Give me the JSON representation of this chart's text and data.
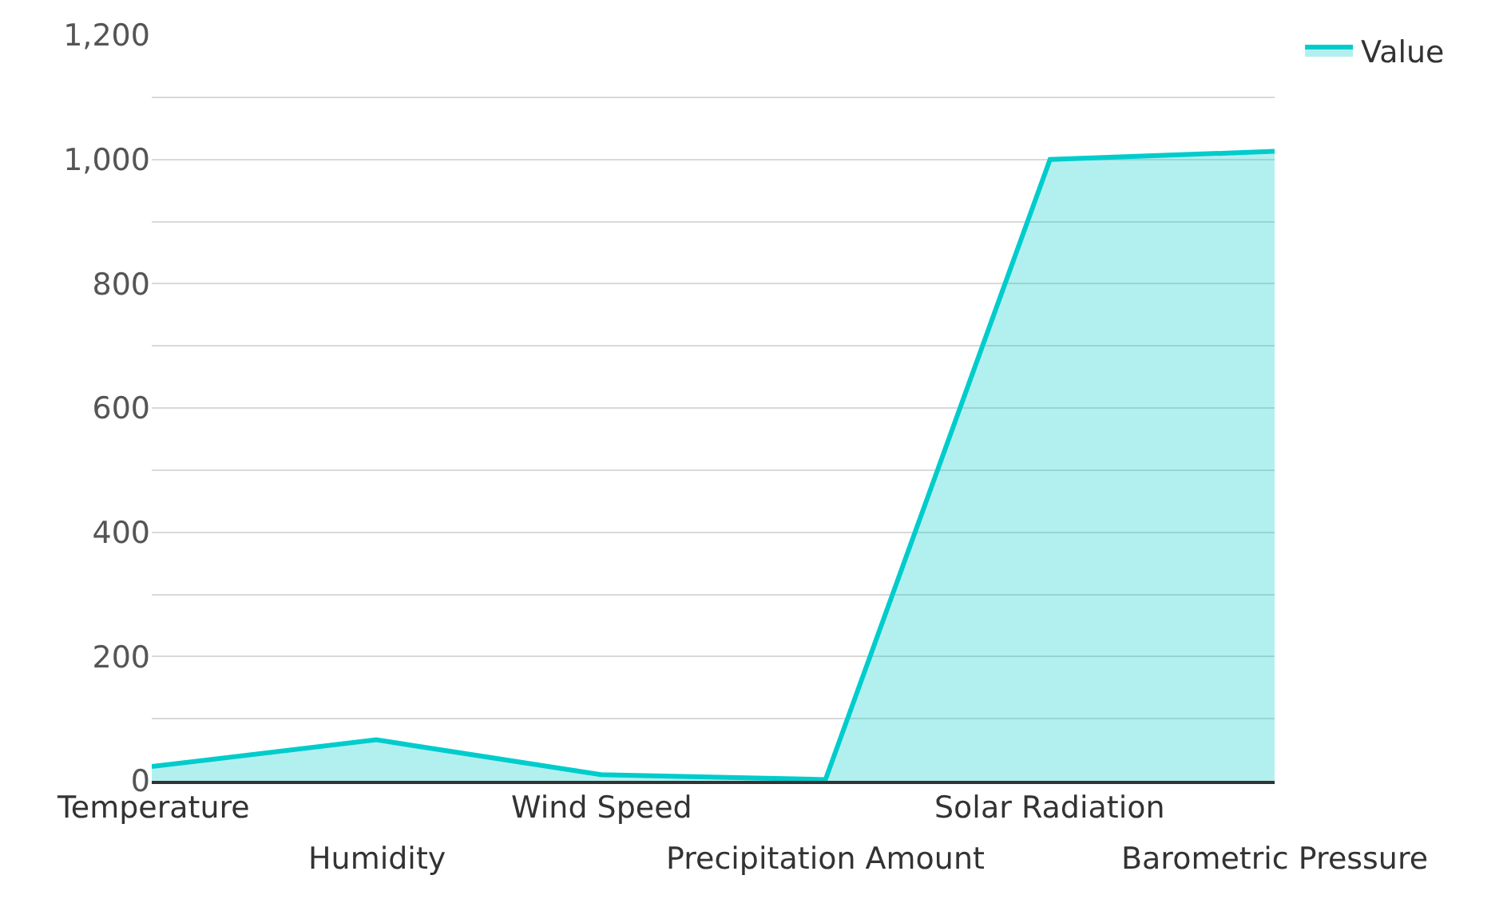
{
  "chart_data": {
    "type": "area",
    "categories": [
      "Temperature",
      "Humidity",
      "Wind Speed",
      "Precipitation Amount",
      "Solar Radiation",
      "Barometric Pressure"
    ],
    "series": [
      {
        "name": "Value",
        "color": "#00cccc",
        "values": [
          23,
          66,
          10,
          2,
          1000,
          1013
        ]
      }
    ],
    "ylim": [
      0,
      1200
    ],
    "yticks": [
      0,
      {
        "value": 100,
        "label": null
      },
      200,
      {
        "value": 300,
        "label": null
      },
      400,
      {
        "value": 500,
        "label": null
      },
      600,
      {
        "value": 700,
        "label": null
      },
      800,
      {
        "value": 900,
        "label": null
      },
      {
        "value": 1000,
        "label": "1,000"
      },
      {
        "value": 1100,
        "label": null
      },
      {
        "value": 1200,
        "label": "1,200"
      }
    ],
    "grid": "y",
    "legend": "top right"
  }
}
